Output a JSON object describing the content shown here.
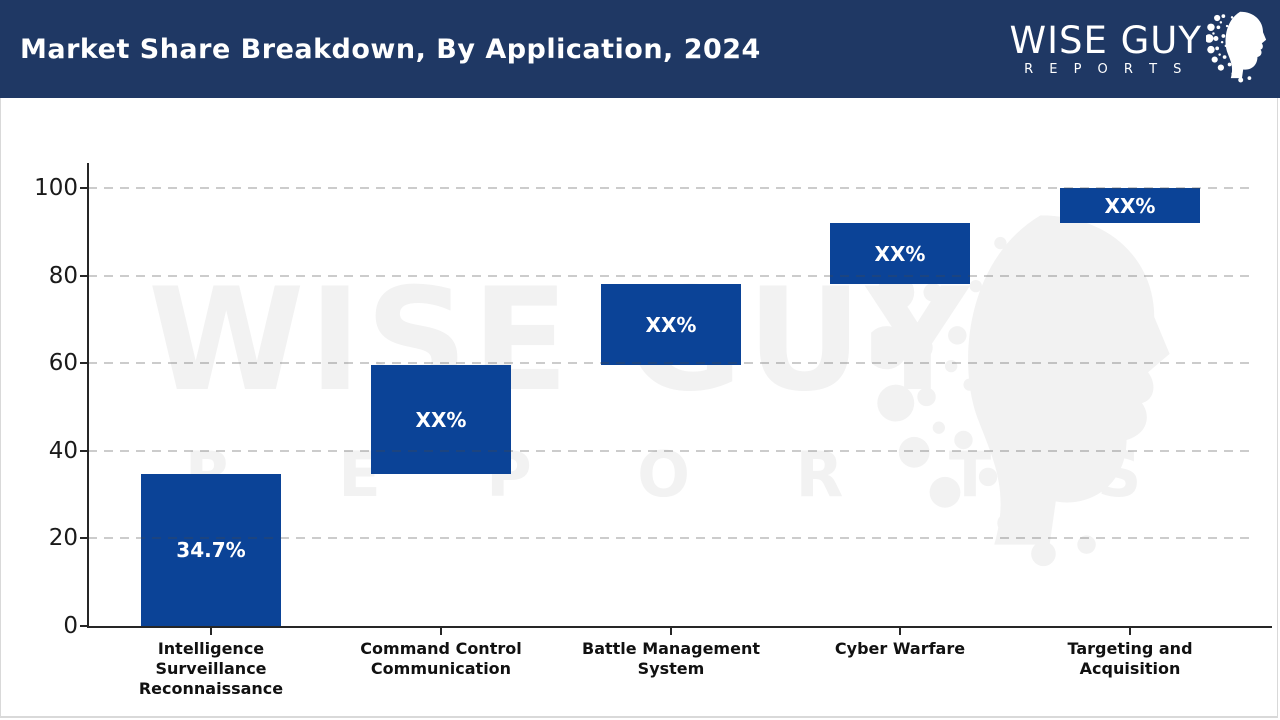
{
  "header": {
    "title": "Market Share Breakdown, By Application, 2024",
    "logo": {
      "name": "WISE GUY",
      "tagline": "R E P O R T S"
    }
  },
  "watermark": {
    "name": "WISE GUY",
    "tagline": "R E P O R T S"
  },
  "chart_data": {
    "type": "bar",
    "subtype": "waterfall",
    "title": "Market Share Breakdown, By Application, 2024",
    "categories": [
      "Intelligence Surveillance Reconnaissance",
      "Command Control Communication",
      "Battle Management System",
      "Cyber Warfare",
      "Targeting and Acquisition"
    ],
    "category_label_lines": [
      [
        "Intelligence",
        "Surveillance",
        "Reconnaissance"
      ],
      [
        "Command Control",
        "Communication"
      ],
      [
        "Battle Management",
        "System"
      ],
      [
        "Cyber Warfare"
      ],
      [
        "Targeting and",
        "Acquisition"
      ]
    ],
    "bars": [
      {
        "category": "Intelligence Surveillance Reconnaissance",
        "label": "34.7%",
        "start": 0,
        "end": 34.7
      },
      {
        "category": "Command Control Communication",
        "label": "XX%",
        "start": 34.7,
        "end": 59.5
      },
      {
        "category": "Battle Management System",
        "label": "XX%",
        "start": 59.5,
        "end": 78
      },
      {
        "category": "Cyber Warfare",
        "label": "XX%",
        "start": 78,
        "end": 92
      },
      {
        "category": "Targeting and Acquisition",
        "label": "XX%",
        "start": 92,
        "end": 100
      }
    ],
    "xlabel": "",
    "ylabel": "",
    "yticks": [
      0,
      20,
      40,
      60,
      80,
      100
    ],
    "ylim": [
      0,
      105
    ],
    "grid": "horizontal-dashed",
    "legend": "none",
    "colors": {
      "bar": "#0b4397",
      "bar_label": "#ffffff",
      "axis": "#262626",
      "grid": "#cecece",
      "header_bg": "#1f3864",
      "title_text": "#ffffff",
      "watermark": "#f2f2f2"
    }
  }
}
